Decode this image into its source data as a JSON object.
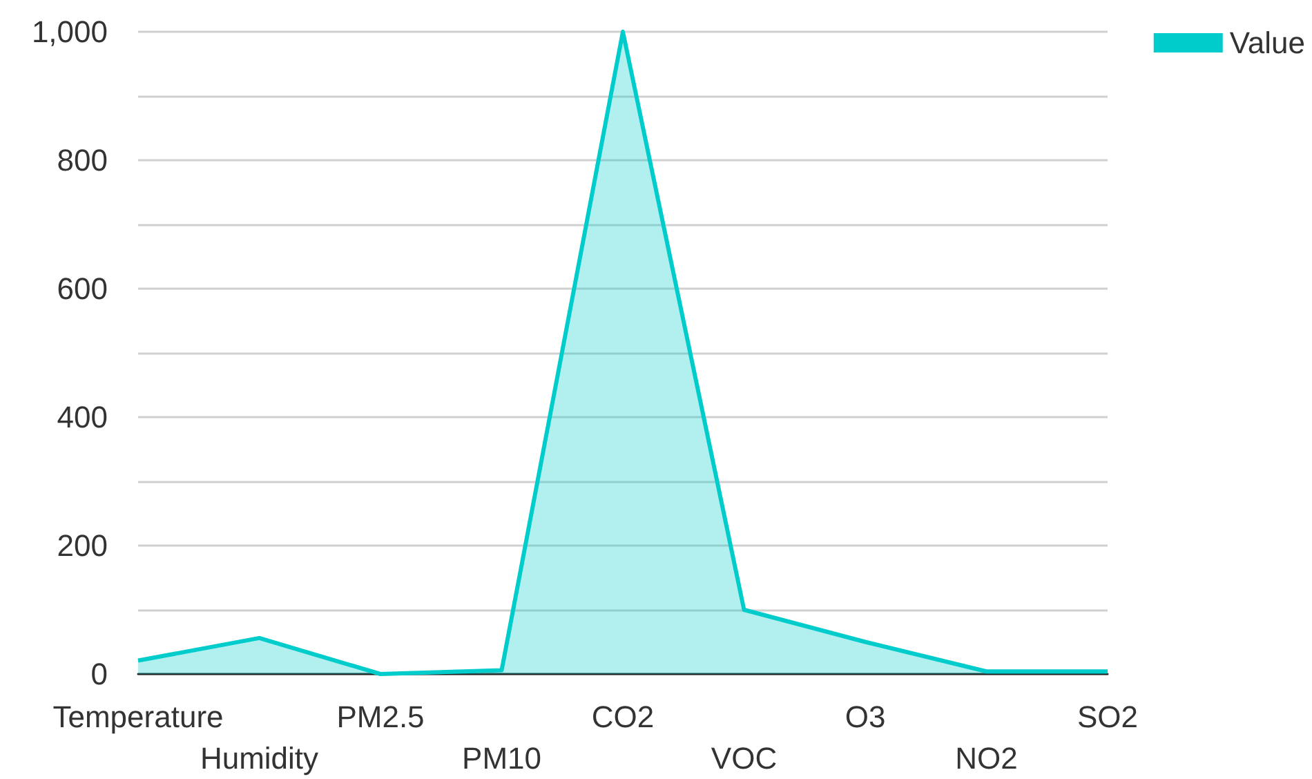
{
  "chart_data": {
    "type": "area",
    "categories": [
      "Temperature",
      "Humidity",
      "PM2.5",
      "PM10",
      "CO2",
      "VOC",
      "O3",
      "NO2",
      "SO2"
    ],
    "series": [
      {
        "name": "Value",
        "color": "#00cccc",
        "values": [
          21,
          56,
          0,
          6,
          1000,
          100,
          50,
          4,
          4
        ]
      }
    ],
    "ylim": [
      0,
      1000
    ],
    "yticks": [
      0,
      {
        "value": 100,
        "label": null
      },
      200,
      {
        "value": 300,
        "label": null
      },
      400,
      {
        "value": 500,
        "label": null
      },
      600,
      {
        "value": 700,
        "label": null
      },
      800,
      {
        "value": 900,
        "label": null
      },
      {
        "value": 1000,
        "label": "1,000"
      }
    ],
    "grid": "y",
    "legend": "top right"
  }
}
